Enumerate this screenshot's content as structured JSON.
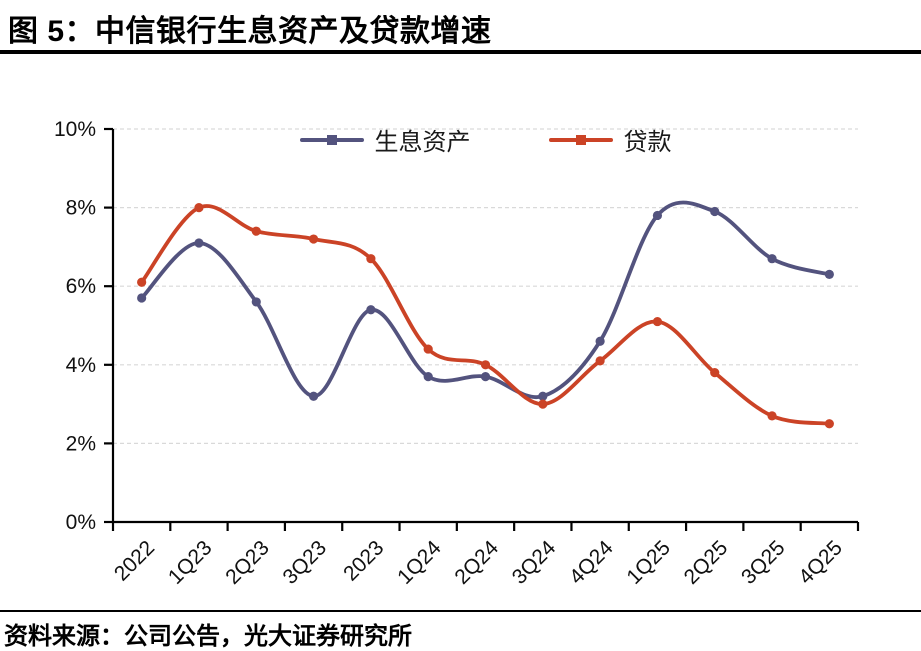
{
  "header": {
    "title": "图 5：中信银行生息资产及贷款增速"
  },
  "footer": {
    "source": "资料来源：公司公告，光大证券研究所"
  },
  "chart_data": {
    "type": "line",
    "title": "图 5：中信银行生息资产及贷款增速",
    "categories": [
      "2022",
      "1Q23",
      "2Q23",
      "3Q23",
      "2023",
      "1Q24",
      "2Q24",
      "3Q24",
      "4Q24",
      "1Q25",
      "2Q25",
      "3Q25",
      "4Q25"
    ],
    "series": [
      {
        "name": "生息资产",
        "color": "#53537E",
        "values": [
          5.7,
          7.1,
          5.6,
          3.2,
          5.4,
          3.7,
          3.7,
          3.2,
          4.6,
          7.8,
          7.9,
          6.7,
          6.3
        ]
      },
      {
        "name": "贷款",
        "color": "#CB4326",
        "values": [
          6.1,
          8.0,
          7.4,
          7.2,
          6.7,
          4.4,
          4.0,
          3.0,
          4.1,
          5.1,
          3.8,
          2.7,
          2.5
        ]
      }
    ],
    "ylabel": "",
    "xlabel": "",
    "ylim": [
      0,
      10
    ],
    "ytick_labels": [
      "0%",
      "2%",
      "4%",
      "6%",
      "8%",
      "10%"
    ],
    "grid": "horizontal-dashed",
    "grid_color": "#d9d9d9",
    "axis_color": "#000000",
    "tick_label_color": "#111111",
    "legend_position": "top-center",
    "marker": "circle",
    "line_style": "smooth",
    "x_tick_rotation": 45
  }
}
